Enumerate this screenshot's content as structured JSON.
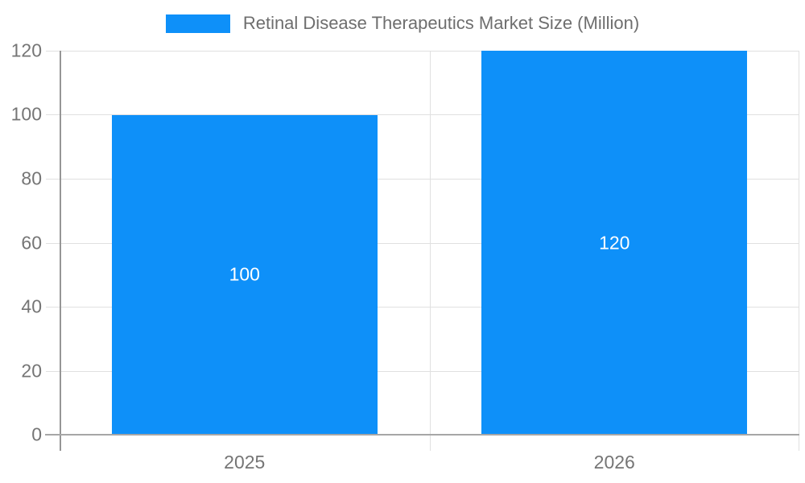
{
  "legend": {
    "label": "Retinal Disease Therapeutics Market Size (Million)"
  },
  "chart_data": {
    "type": "bar",
    "title": "Retinal Disease Therapeutics Market Size (Million)",
    "categories": [
      "2025",
      "2026"
    ],
    "series": [
      {
        "name": "Retinal Disease Therapeutics Market Size (Million)",
        "values": [
          100,
          120
        ]
      }
    ],
    "data_labels": [
      "100",
      "120"
    ],
    "xlabel": "",
    "ylabel": "",
    "ylim": [
      0,
      120
    ],
    "yticks": [
      0,
      20,
      40,
      60,
      80,
      100,
      120
    ],
    "grid": true,
    "legend_position": "top",
    "colors": {
      "bar": "#0E90F9",
      "grid": "#E0E0E0",
      "y_axis_line": "#969696",
      "x_axis_line": "#A6A6A6",
      "tick_label": "#757575",
      "legend_text": "#6E6E6E",
      "data_label": "#FFFFFF",
      "background": "#FFFFFF"
    }
  }
}
